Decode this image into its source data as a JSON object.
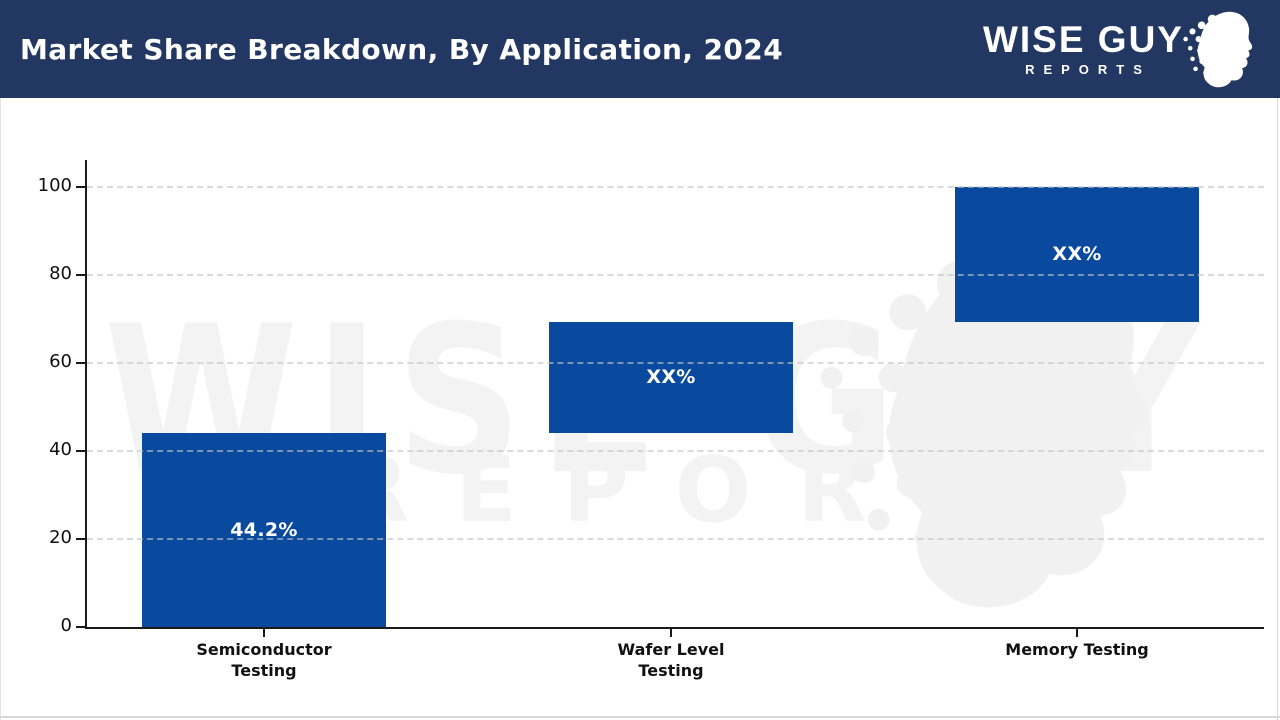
{
  "header": {
    "title": "Market Share Breakdown, By Application, 2024",
    "logo": {
      "brand_line1": "WISE GUY",
      "brand_line2": "REPORTS"
    }
  },
  "watermark": {
    "line1": "WISE GUY",
    "line2": "REPORTS"
  },
  "chart_data": {
    "type": "bar",
    "subtype": "waterfall",
    "title": "Market Share Breakdown, By Application, 2024",
    "categories": [
      "Semiconductor Testing",
      "Wafer Level Testing",
      "Memory Testing"
    ],
    "categories_wrapped": [
      [
        "Semiconductor",
        "Testing"
      ],
      [
        "Wafer Level",
        "Testing"
      ],
      [
        "Memory Testing"
      ]
    ],
    "series": [
      {
        "name": "Market share (%)",
        "segments": [
          {
            "category": "Semiconductor Testing",
            "start": 0,
            "end": 44.2,
            "label": "44.2%"
          },
          {
            "category": "Wafer Level Testing",
            "start": 44.2,
            "end": 69.4,
            "label": "XX%"
          },
          {
            "category": "Memory Testing",
            "start": 69.4,
            "end": 100,
            "label": "XX%"
          }
        ]
      }
    ],
    "xlabel": "",
    "ylabel": "",
    "ylim": [
      0,
      100
    ],
    "yticks": [
      0,
      20,
      40,
      60,
      80,
      100
    ],
    "grid": {
      "horizontal": true,
      "style": "dashed",
      "drawn_above_bars": true
    },
    "legend": "none",
    "colors": {
      "bar": "#0a4a9e",
      "header_background": "#233763",
      "bar_label_text": "#ffffff",
      "gridline": "#d9d9d9",
      "axis": "#1a1a1a"
    }
  }
}
